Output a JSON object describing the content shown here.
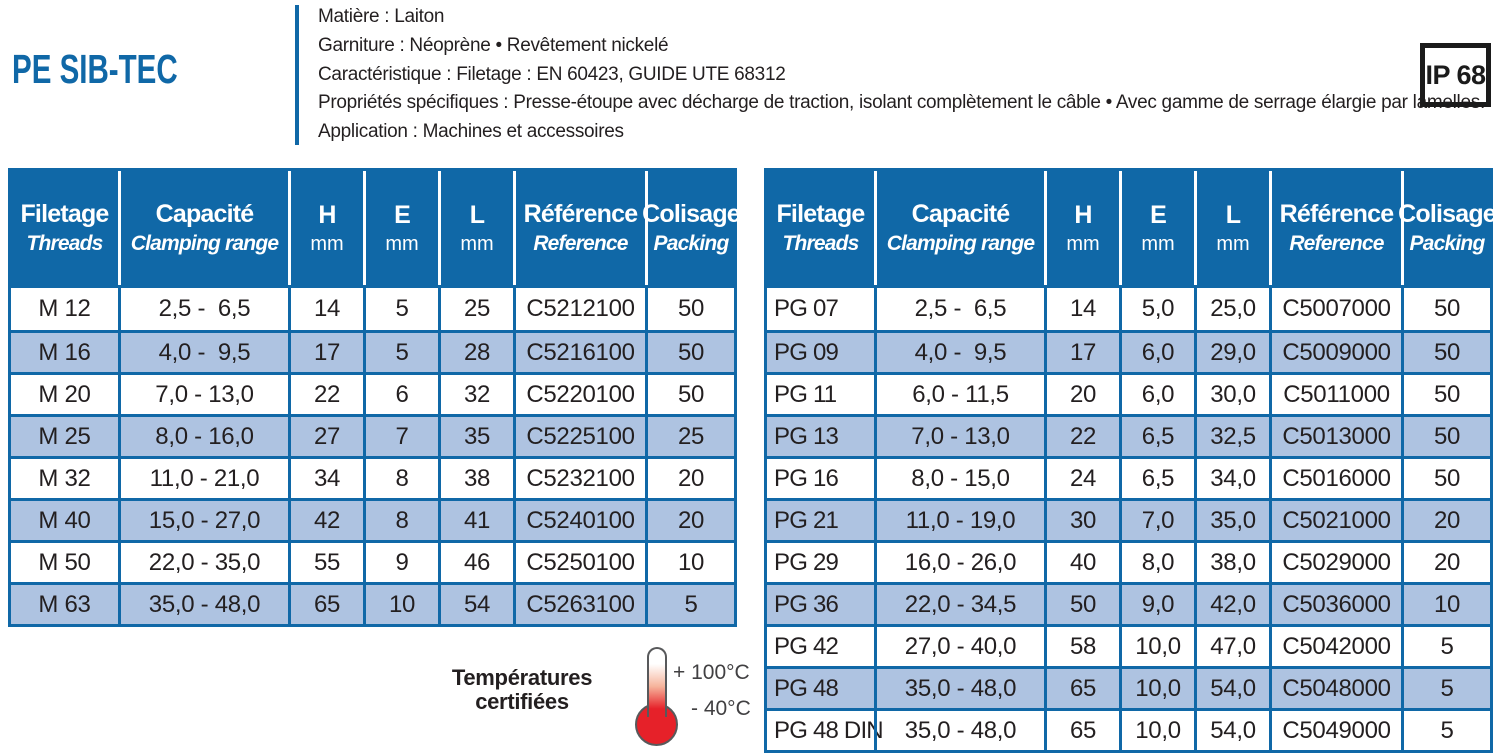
{
  "header": {
    "title": "PE SIB-TEC",
    "ip_badge": "IP 68",
    "spec_lines": [
      "Matière : Laiton",
      "Garniture : Néoprène • Revêtement nickelé",
      "Caractéristique : Filetage : EN 60423, GUIDE UTE 68312",
      "Propriétés spécifiques : Presse-étoupe avec décharge de traction, isolant complètement le câble • Avec gamme de serrage élargie par lamelles.",
      "Application : Machines et accessoires"
    ]
  },
  "table_header": {
    "filetage_fr": "Filetage",
    "filetage_en": "Threads",
    "capacite_fr": "Capacité",
    "capacite_en": "Clamping range",
    "h_label": "H",
    "h_unit": "mm",
    "e_label": "E",
    "e_unit": "mm",
    "l_label": "L",
    "l_unit": "mm",
    "reference_fr": "Référence",
    "reference_en": "Reference",
    "colisage_fr": "Colisage",
    "colisage_en": "Packing"
  },
  "metric_table": {
    "rows": [
      [
        "M 12",
        "2,5 -  6,5",
        "14",
        "5",
        "25",
        "C5212100",
        "50"
      ],
      [
        "M 16",
        "4,0 -  9,5",
        "17",
        "5",
        "28",
        "C5216100",
        "50"
      ],
      [
        "M 20",
        "7,0 - 13,0",
        "22",
        "6",
        "32",
        "C5220100",
        "50"
      ],
      [
        "M 25",
        "8,0 - 16,0",
        "27",
        "7",
        "35",
        "C5225100",
        "25"
      ],
      [
        "M 32",
        "11,0 - 21,0",
        "34",
        "8",
        "38",
        "C5232100",
        "20"
      ],
      [
        "M 40",
        "15,0 - 27,0",
        "42",
        "8",
        "41",
        "C5240100",
        "20"
      ],
      [
        "M 50",
        "22,0 - 35,0",
        "55",
        "9",
        "46",
        "C5250100",
        "10"
      ],
      [
        "M 63",
        "35,0 - 48,0",
        "65",
        "10",
        "54",
        "C5263100",
        "5"
      ]
    ]
  },
  "pg_table": {
    "rows": [
      [
        "PG 07",
        "2,5 -  6,5",
        "14",
        "5,0",
        "25,0",
        "C5007000",
        "50"
      ],
      [
        "PG 09",
        "4,0 -  9,5",
        "17",
        "6,0",
        "29,0",
        "C5009000",
        "50"
      ],
      [
        "PG 11",
        "6,0 - 11,5",
        "20",
        "6,0",
        "30,0",
        "C5011000",
        "50"
      ],
      [
        "PG 13",
        "7,0 - 13,0",
        "22",
        "6,5",
        "32,5",
        "C5013000",
        "50"
      ],
      [
        "PG 16",
        "8,0 - 15,0",
        "24",
        "6,5",
        "34,0",
        "C5016000",
        "50"
      ],
      [
        "PG 21",
        "11,0 - 19,0",
        "30",
        "7,0",
        "35,0",
        "C5021000",
        "20"
      ],
      [
        "PG 29",
        "16,0 - 26,0",
        "40",
        "8,0",
        "38,0",
        "C5029000",
        "20"
      ],
      [
        "PG 36",
        "22,0 - 34,5",
        "50",
        "9,0",
        "42,0",
        "C5036000",
        "10"
      ],
      [
        "PG 42",
        "27,0 - 40,0",
        "58",
        "10,0",
        "47,0",
        "C5042000",
        "5"
      ],
      [
        "PG 48",
        "35,0 - 48,0",
        "65",
        "10,0",
        "54,0",
        "C5048000",
        "5"
      ],
      [
        "PG 48 DIN",
        "35,0 - 48,0",
        "65",
        "10,0",
        "54,0",
        "C5049000",
        "5"
      ]
    ]
  },
  "temperature": {
    "line1": "Températures",
    "line2": "certifiées",
    "max": "+ 100°C",
    "min": "- 40°C"
  },
  "colors": {
    "header_blue": "#1068a7",
    "row_alt_blue": "#aec3e1",
    "thermometer_red": "#e62129"
  }
}
